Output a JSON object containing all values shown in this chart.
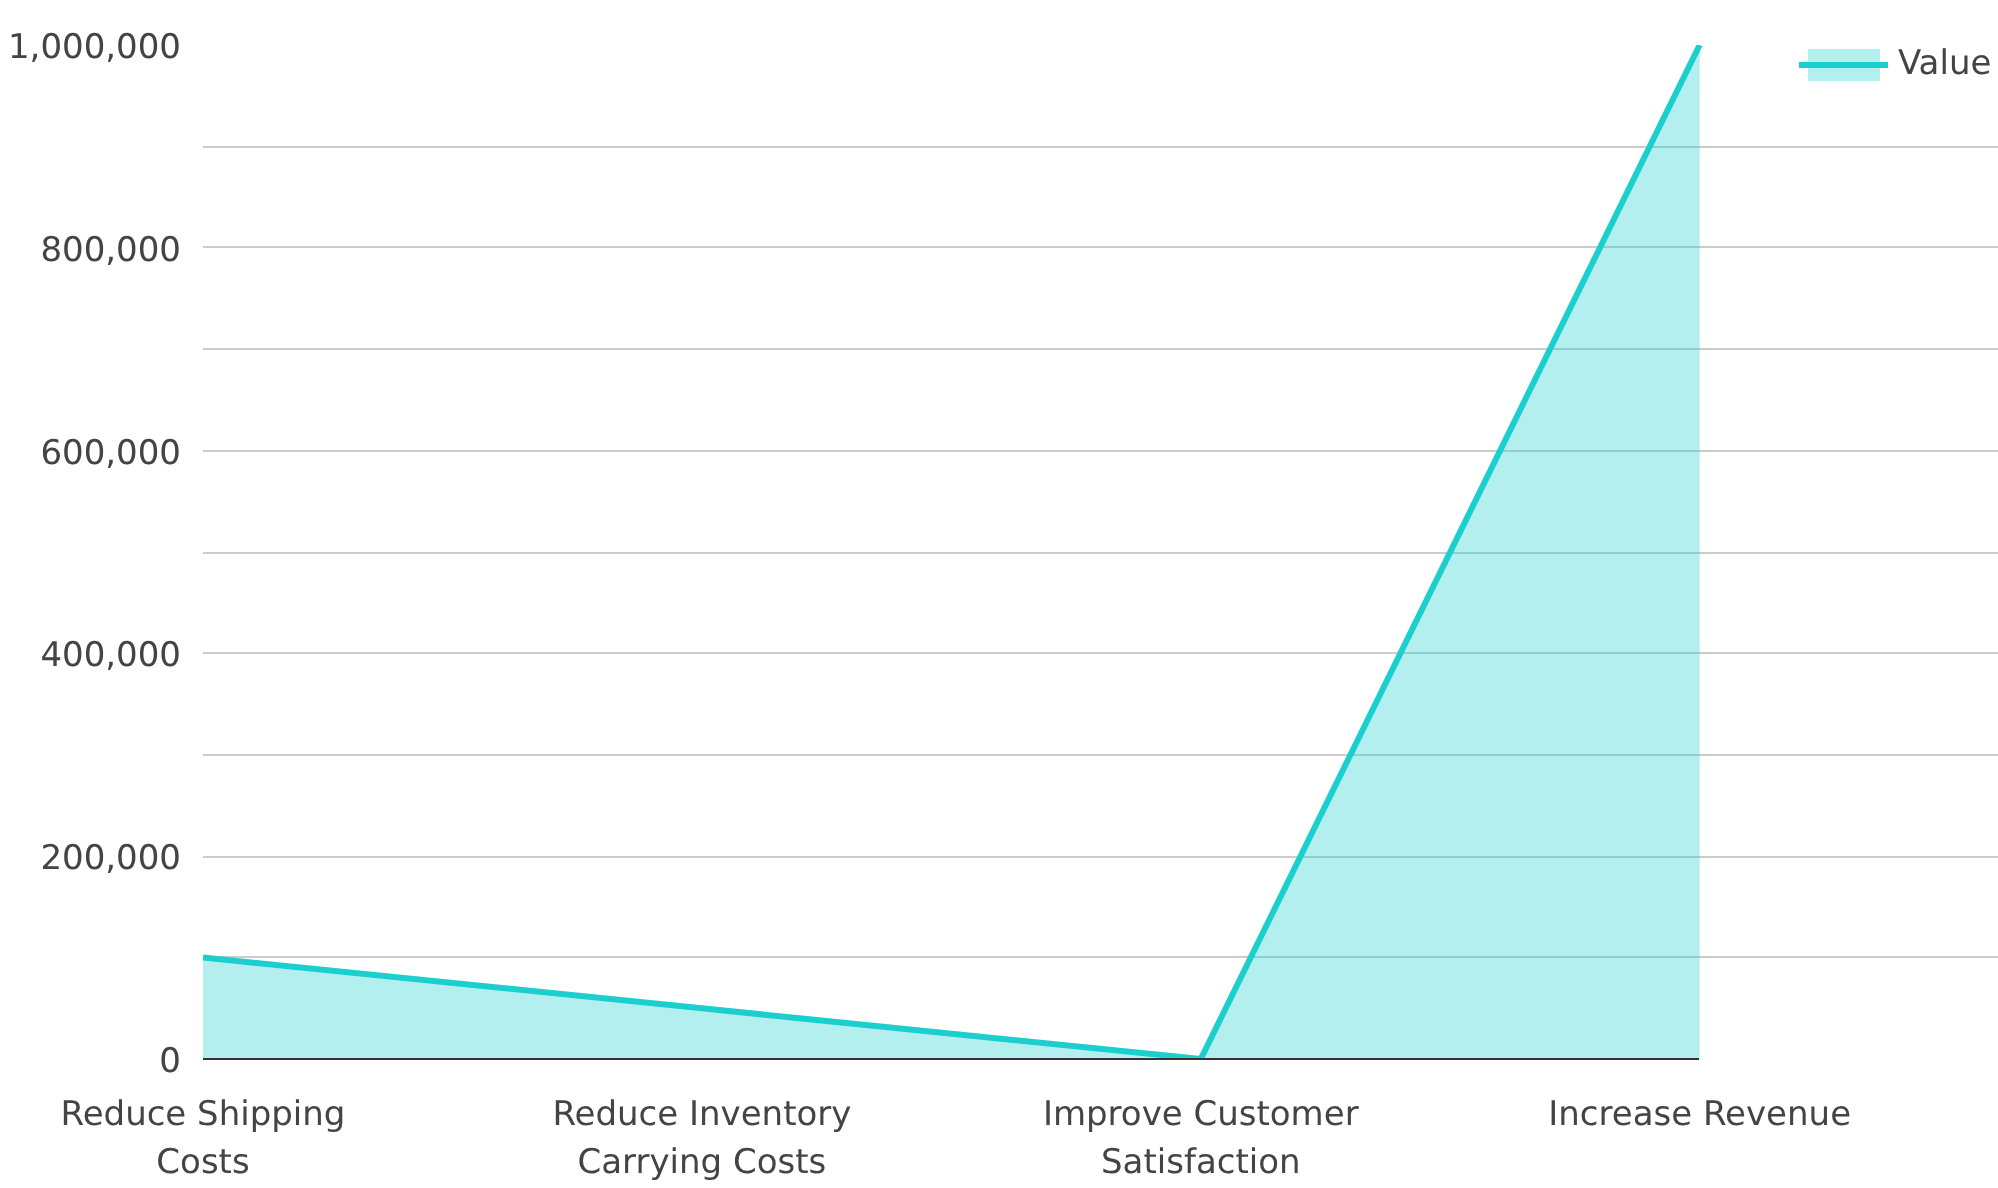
{
  "chart_data": {
    "type": "area",
    "categories": [
      "Reduce Shipping Costs",
      "Reduce Inventory Carrying Costs",
      "Improve Customer Satisfaction",
      "Increase Revenue"
    ],
    "series": [
      {
        "name": "Value",
        "color": "#1ccfcf",
        "values": [
          100000,
          50000,
          0,
          1000000
        ]
      }
    ],
    "ylim": [
      0,
      1000000
    ],
    "yticks": [
      0,
      {
        "value": 100000,
        "label": null
      },
      {
        "value": 200000,
        "label": "200,000"
      },
      {
        "value": 300000,
        "label": null
      },
      {
        "value": 400000,
        "label": "400,000"
      },
      {
        "value": 500000,
        "label": null
      },
      {
        "value": 600000,
        "label": "600,000"
      },
      {
        "value": 700000,
        "label": null
      },
      {
        "value": 800000,
        "label": "800,000"
      },
      {
        "value": 900000,
        "label": null
      },
      {
        "value": 1000000,
        "label": "1,000,000"
      }
    ],
    "grid": "y",
    "legend": "top right"
  }
}
